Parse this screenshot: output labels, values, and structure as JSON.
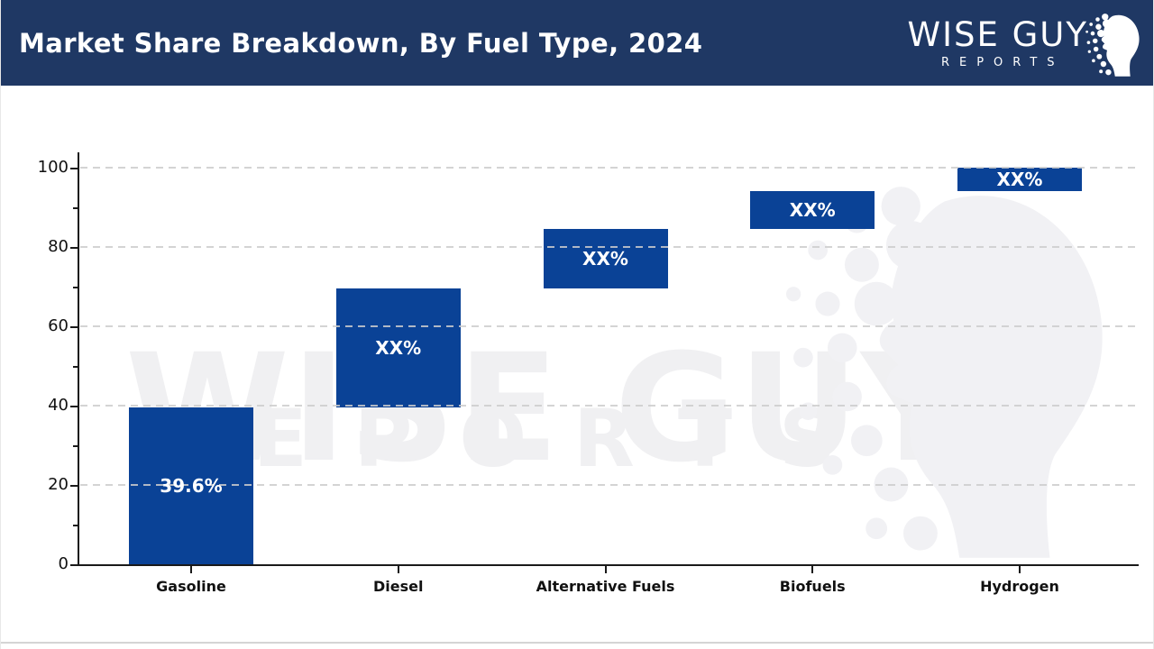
{
  "header": {
    "title": "Market Share Breakdown, By Fuel Type, 2024",
    "bg_color": "#1f3864",
    "logo": {
      "wordmark": "WISE GUY",
      "subtitle": "REPORTS"
    }
  },
  "watermark": {
    "line1": "WISE GUY",
    "line2": "REPORTS"
  },
  "chart_data": {
    "type": "bar",
    "subtype": "waterfall",
    "title": "Market Share Breakdown, By Fuel Type, 2024",
    "categories": [
      "Gasoline",
      "Diesel",
      "Alternative Fuels",
      "Biofuels",
      "Hydrogen"
    ],
    "bars": [
      {
        "category": "Gasoline",
        "start": 0,
        "end": 39.6,
        "value": 39.6,
        "label": "39.6%"
      },
      {
        "category": "Diesel",
        "start": 39.6,
        "end": 69.6,
        "value": 30.0,
        "label": "XX%"
      },
      {
        "category": "Alternative Fuels",
        "start": 69.6,
        "end": 84.6,
        "value": 15.0,
        "label": "XX%"
      },
      {
        "category": "Biofuels",
        "start": 84.6,
        "end": 94.1,
        "value": 9.5,
        "label": "XX%"
      },
      {
        "category": "Hydrogen",
        "start": 94.1,
        "end": 100,
        "value": 5.9,
        "label": "XX%"
      }
    ],
    "yticks": [
      0,
      20,
      40,
      60,
      80,
      100
    ],
    "minor_yticks": [
      10,
      30,
      50,
      70,
      90
    ],
    "ylim": [
      0,
      103.5
    ],
    "xlabel": "",
    "ylabel": "",
    "grid": "horizontal-dashed",
    "legend": "none",
    "bar_color": "#0a4296",
    "bar_label_color": "#ffffff"
  }
}
